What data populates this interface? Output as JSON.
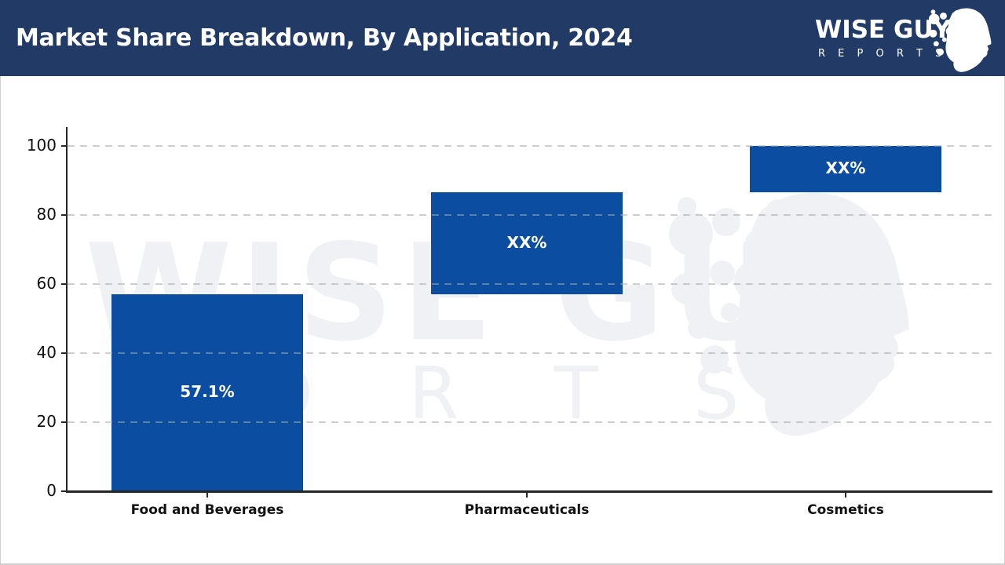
{
  "header": {
    "title": "Market Share Breakdown, By Application, 2024",
    "logo": {
      "line1": "WISE GUY",
      "line2": "R E P O R T S"
    }
  },
  "watermark": {
    "line1": "WISE GUY",
    "line2": "P O R T S"
  },
  "colors": {
    "header_bg": "#223a66",
    "bar": "#0b4da1",
    "axis": "#262626",
    "grid_dash": "#d9d9d9",
    "watermark": "#f0f1f4",
    "bar_label_text": "#ffffff",
    "tick_text": "#111111"
  },
  "chart_data": {
    "type": "bar",
    "variant": "waterfall-stacked-percent",
    "title": "Market Share Breakdown, By Application, 2024",
    "categories": [
      "Food and Beverages",
      "Pharmaceuticals",
      "Cosmetics"
    ],
    "series": [
      {
        "name": "Food and Beverages",
        "start": 0,
        "end": 57.1,
        "value": 57.1,
        "label": "57.1%"
      },
      {
        "name": "Pharmaceuticals",
        "start": 57.1,
        "end": 86.6,
        "value": 29.5,
        "label": "XX%"
      },
      {
        "name": "Cosmetics",
        "start": 86.6,
        "end": 100,
        "value": 13.4,
        "label": "XX%"
      }
    ],
    "xlabel": "",
    "ylabel": "",
    "ylim": [
      0,
      100
    ],
    "yticks": [
      0,
      20,
      40,
      60,
      80,
      100
    ],
    "grid": "horizontal-dashed-above-bars",
    "legend": "none"
  }
}
